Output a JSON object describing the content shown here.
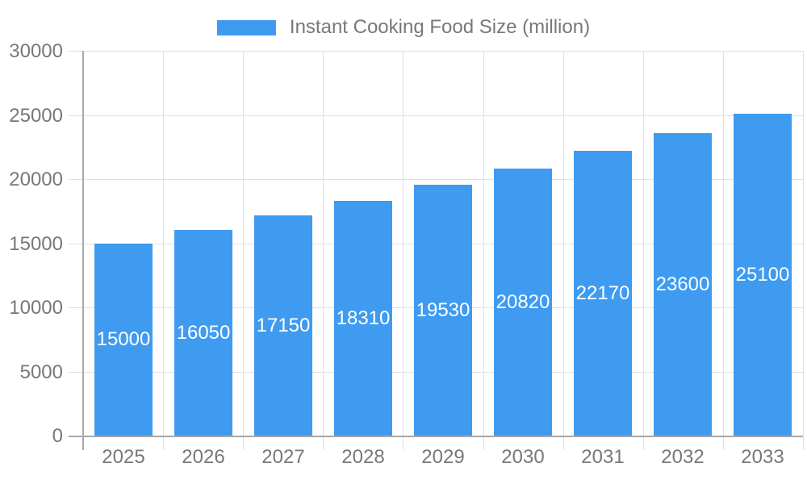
{
  "chart_data": {
    "type": "bar",
    "title": "Instant Cooking Food Size (million)",
    "categories": [
      "2025",
      "2026",
      "2027",
      "2028",
      "2029",
      "2030",
      "2031",
      "2032",
      "2033"
    ],
    "values": [
      15000,
      16050,
      17150,
      18310,
      19530,
      20820,
      22170,
      23600,
      25100
    ],
    "series": [
      {
        "name": "Instant Cooking Food Size (million)",
        "values": [
          15000,
          16050,
          17150,
          18310,
          19530,
          20820,
          22170,
          23600,
          25100
        ]
      }
    ],
    "xlabel": "",
    "ylabel": "",
    "ylim": [
      0,
      30000
    ],
    "ytick_step": 5000,
    "yticks": [
      0,
      5000,
      10000,
      15000,
      20000,
      25000,
      30000
    ],
    "grid": true,
    "legend_position": "top",
    "value_labels": "inside-bar"
  },
  "legend": {
    "label": "Instant Cooking Food Size (million)"
  },
  "colors": {
    "bar": "#3E9BF0",
    "bar_label_text": "#FFFFFF",
    "axis_text": "#787878",
    "axis_line": "#A8A8A8",
    "grid_line": "#E0E0E0",
    "background": "#FFFFFF"
  }
}
